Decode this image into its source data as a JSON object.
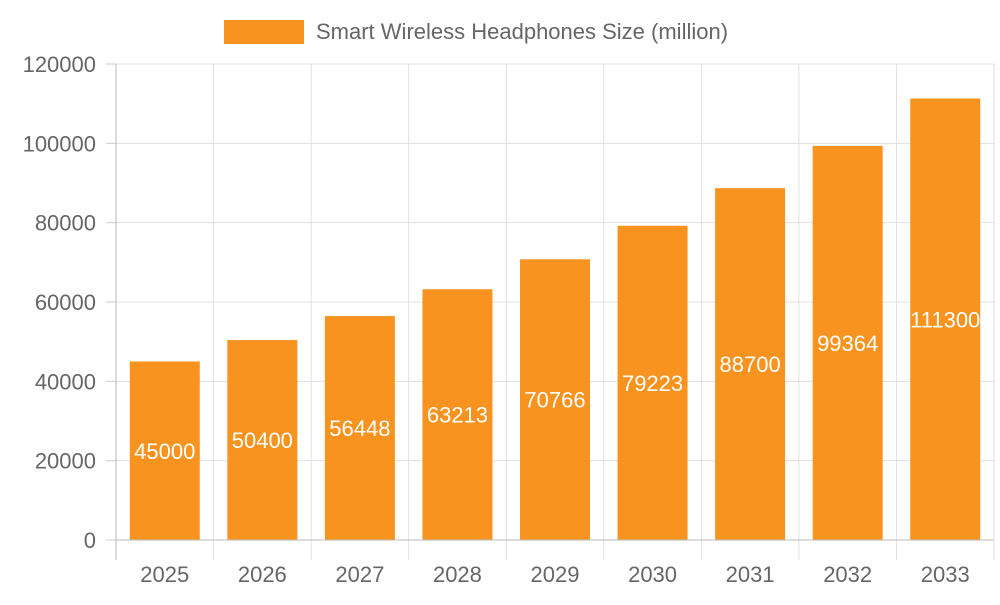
{
  "chart_data": {
    "type": "bar",
    "title": "",
    "xlabel": "",
    "ylabel": "",
    "categories": [
      "2025",
      "2026",
      "2027",
      "2028",
      "2029",
      "2030",
      "2031",
      "2032",
      "2033"
    ],
    "series": [
      {
        "name": "Smart Wireless Headphones Size (million)",
        "values": [
          45000,
          50400,
          56448,
          63213,
          70766,
          79223,
          88700,
          99364,
          111300
        ],
        "color": "#F7931E"
      }
    ],
    "ylim": [
      0,
      120000
    ],
    "yticks": [
      "0",
      "20000",
      "40000",
      "60000",
      "80000",
      "100000",
      "120000"
    ],
    "grid": true,
    "legend": "top-center",
    "data_labels": true,
    "data_label_color": "#ffffff"
  }
}
